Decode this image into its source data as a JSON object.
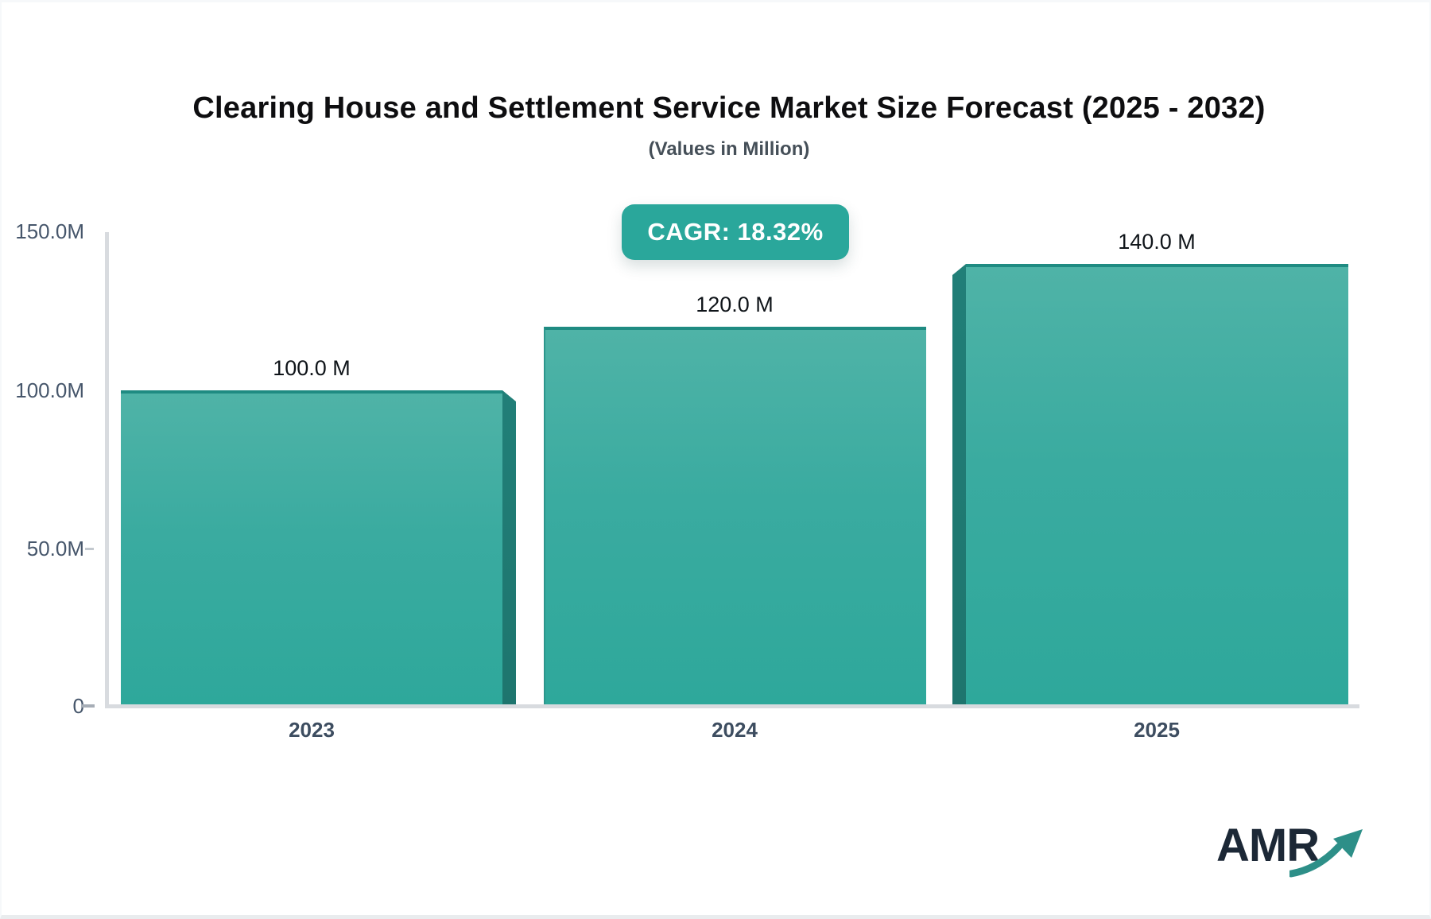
{
  "header": {
    "title": "Clearing House and Settlement Service Market Size Forecast (2025 - 2032)",
    "subtitle": "(Values in Million)"
  },
  "badge": {
    "label": "CAGR: 18.32%"
  },
  "chart_data": {
    "type": "bar",
    "title": "Clearing House and Settlement Service Market Size Forecast (2025 - 2032)",
    "subtitle": "(Values in Million)",
    "categories": [
      "2023",
      "2024",
      "2025"
    ],
    "values": [
      100.0,
      120.0,
      140.0
    ],
    "bar_labels": [
      "100.0 M",
      "120.0 M",
      "140.0 M"
    ],
    "unit": "Million",
    "cagr_percent": 18.32,
    "xlabel": "",
    "ylabel": "",
    "y_ticks": [
      "150.0M",
      "100.0M",
      "50.0M",
      "0"
    ],
    "ylim": [
      0,
      150
    ],
    "grid": "off",
    "legend": "none",
    "colors": {
      "bar_top": "#4fb3a7",
      "bar_bottom": "#2ea89b",
      "bar_edge": "#1f8b82",
      "bar_side_3d": "#207a74",
      "badge_background": "#2aa79b",
      "badge_text": "#ffffff",
      "axis": "#d8dbdf",
      "y_label_text": "#46566b",
      "x_label_text": "#3d4d60",
      "value_label_text": "#0f1419",
      "logo_text": "#1c2836",
      "logo_arrow": "#2d8f88"
    }
  },
  "logo": {
    "text": "AMR",
    "icon": "growth-arrow-icon"
  }
}
